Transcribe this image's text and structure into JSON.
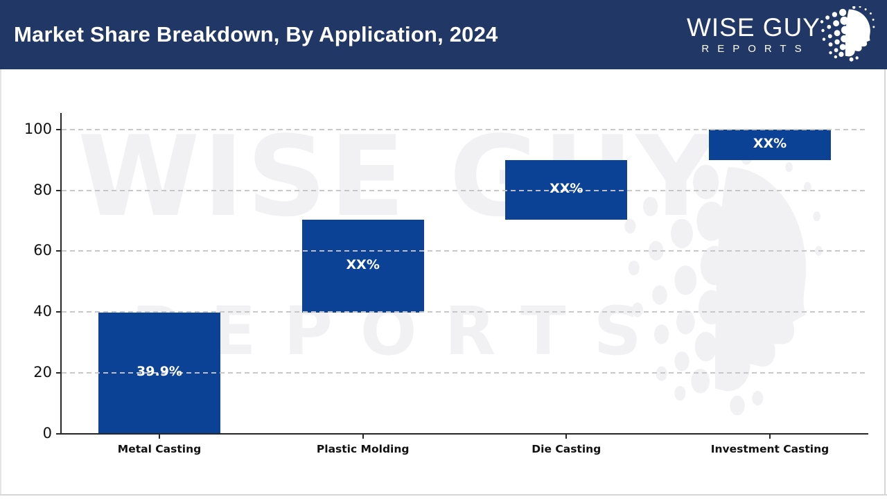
{
  "header": {
    "title": "Market Share Breakdown, By Application, 2024",
    "background_color": "#213765",
    "logo": {
      "line1": "WISE GUY",
      "line2": "REPORTS"
    }
  },
  "watermark": {
    "line1": "WISE GUY",
    "line2": "REPORTS"
  },
  "chart_data": {
    "type": "bar",
    "subtype": "waterfall",
    "title": "Market Share Breakdown, By Application, 2024",
    "categories": [
      "Metal Casting",
      "Plastic Molding",
      "Die Casting",
      "Investment Casting"
    ],
    "segments": [
      {
        "category": "Metal Casting",
        "start": 0,
        "end": 39.9,
        "label": "39.9%"
      },
      {
        "category": "Plastic Molding",
        "start": 39.9,
        "end": 70.3,
        "label": "XX%"
      },
      {
        "category": "Die Casting",
        "start": 70.3,
        "end": 89.9,
        "label": "XX%"
      },
      {
        "category": "Investment Casting",
        "start": 89.9,
        "end": 100,
        "label": "XX%"
      }
    ],
    "yticks": [
      0,
      20,
      40,
      60,
      80,
      100
    ],
    "ylim": [
      0,
      105
    ],
    "xlabel": "",
    "ylabel": "",
    "bar_color": "#0b4296",
    "grid": "horizontal dashed gridlines drawn above bars",
    "legend": null
  }
}
